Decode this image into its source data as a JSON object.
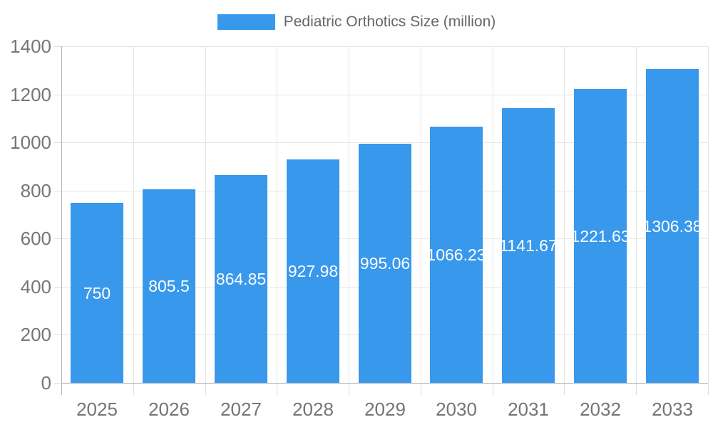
{
  "legend": {
    "label": "Pediatric Orthotics Size (million)"
  },
  "colors": {
    "bar": "#3898EC",
    "grid": "#e5e5e5",
    "axis_border": "#b3b3b3",
    "tick_mark": "#dcdcdc",
    "tick_text": "#757575",
    "legend_text": "#666666",
    "value_label": "#ffffff",
    "background": "#ffffff"
  },
  "chart_data": {
    "type": "bar",
    "title": "Pediatric Orthotics Size (million)",
    "categories": [
      "2025",
      "2026",
      "2027",
      "2028",
      "2029",
      "2030",
      "2031",
      "2032",
      "2033"
    ],
    "values": [
      750,
      805.5,
      864.85,
      927.98,
      995.06,
      1066.23,
      1141.67,
      1221.63,
      1306.38
    ],
    "value_labels": [
      "750",
      "805.5",
      "864.85",
      "927.98",
      "995.06",
      "1066.23",
      "1141.67",
      "1221.63",
      "1306.38"
    ],
    "yticks": [
      "0",
      "200",
      "400",
      "600",
      "800",
      "1000",
      "1200",
      "1400"
    ],
    "ylim": [
      0,
      1400
    ],
    "ytick_step": 200,
    "xlabel": "",
    "ylabel": "",
    "grid": true,
    "legend_position": "top"
  }
}
